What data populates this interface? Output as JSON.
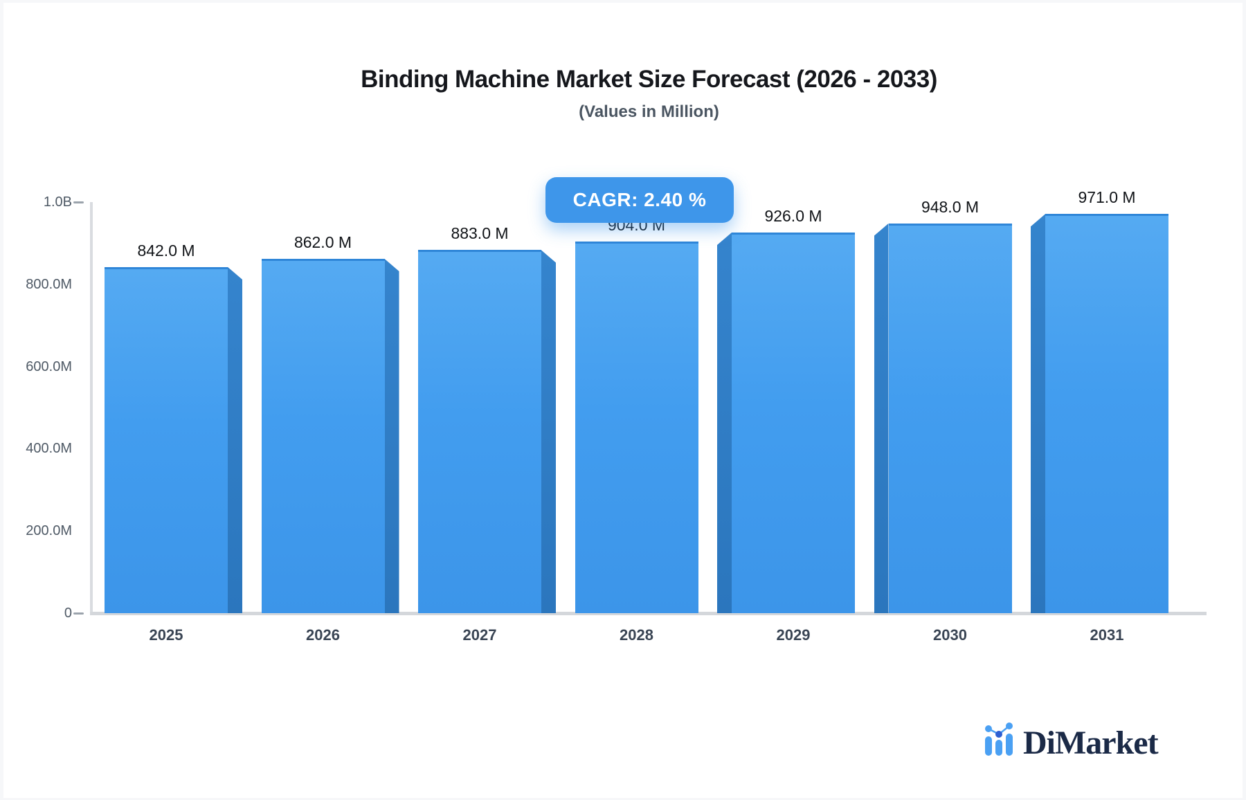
{
  "header": {
    "title": "Binding Machine Market Size Forecast (2026 - 2033)",
    "subtitle": "(Values in Million)"
  },
  "cagr_badge": {
    "label": "CAGR: 2.40 %"
  },
  "chart_data": {
    "type": "bar",
    "title": "Binding Machine Market Size Forecast (2026 - 2033)",
    "subtitle": "(Values in Million)",
    "categories": [
      "2025",
      "2026",
      "2027",
      "2028",
      "2029",
      "2030",
      "2031"
    ],
    "values": [
      842,
      862,
      883,
      904,
      926,
      948,
      971
    ],
    "value_labels": [
      "842.0 M",
      "862.0 M",
      "883.0 M",
      "904.0 M",
      "926.0 M",
      "948.0 M",
      "971.0 M"
    ],
    "values_unit": "Million",
    "cagr_annotation": "CAGR: 2.40 %",
    "y_axis": {
      "ticks": [
        {
          "label": "0",
          "value": 0,
          "dash": true
        },
        {
          "label": "200.0M",
          "value": 200,
          "dash": false
        },
        {
          "label": "400.0M",
          "value": 400,
          "dash": false
        },
        {
          "label": "600.0M",
          "value": 600,
          "dash": false
        },
        {
          "label": "800.0M",
          "value": 800,
          "dash": false
        },
        {
          "label": "1.0B",
          "value": 1000,
          "dash": true
        }
      ]
    },
    "ylim": [
      0,
      1000
    ],
    "grid": false,
    "legend": "none",
    "bar_color": "#3f9aee",
    "bar_side_color": "#2e7cc4"
  },
  "logo": {
    "name": "DiMarket"
  },
  "colors": {
    "badge_bg": "#3e96ea",
    "bar_face": "#42 9def",
    "axis_line": "#d6d9dd",
    "title_text": "#15171c",
    "subtitle_text": "#4a5561",
    "logo_navy": "#1b2a47",
    "logo_blue": "#4aa0f3"
  }
}
